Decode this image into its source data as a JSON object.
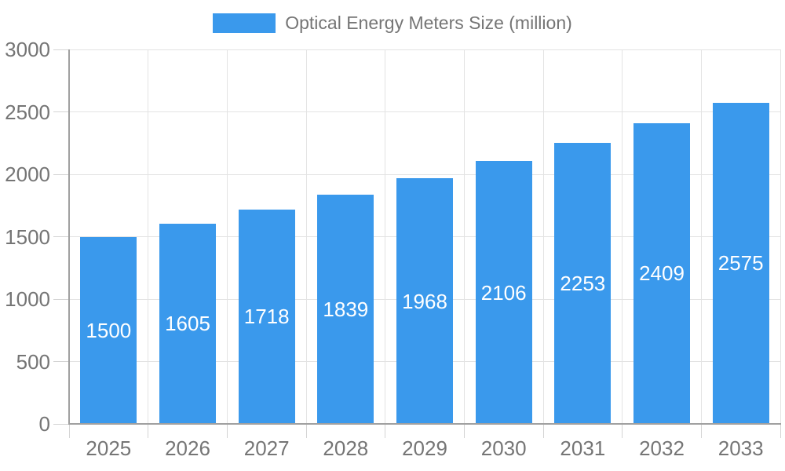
{
  "chart_data": {
    "type": "bar",
    "title": "Optical Energy Meters Size (million)",
    "categories": [
      "2025",
      "2026",
      "2027",
      "2028",
      "2029",
      "2030",
      "2031",
      "2032",
      "2033"
    ],
    "values": [
      1500,
      1605,
      1718,
      1839,
      1968,
      2106,
      2253,
      2409,
      2575
    ],
    "bar_labels": [
      "1500",
      "1605",
      "1718",
      "1839",
      "1968",
      "2106",
      "2253",
      "2409",
      "2575"
    ],
    "ylim": [
      0,
      3000
    ],
    "yticks": [
      0,
      500,
      1000,
      1500,
      2000,
      2500,
      3000
    ],
    "ytick_labels": [
      "0",
      "500",
      "1000",
      "1500",
      "2000",
      "2500",
      "3000"
    ],
    "grid": true,
    "legend_position": "top",
    "colors": {
      "bar": "#3A99EC",
      "bar_label": "#FFFFFF",
      "axis_text": "#757575",
      "gridline": "#E3E3E3",
      "tick": "#D4D4D4",
      "axis_line": "#A0A0A0",
      "background": "#FFFFFF"
    }
  }
}
